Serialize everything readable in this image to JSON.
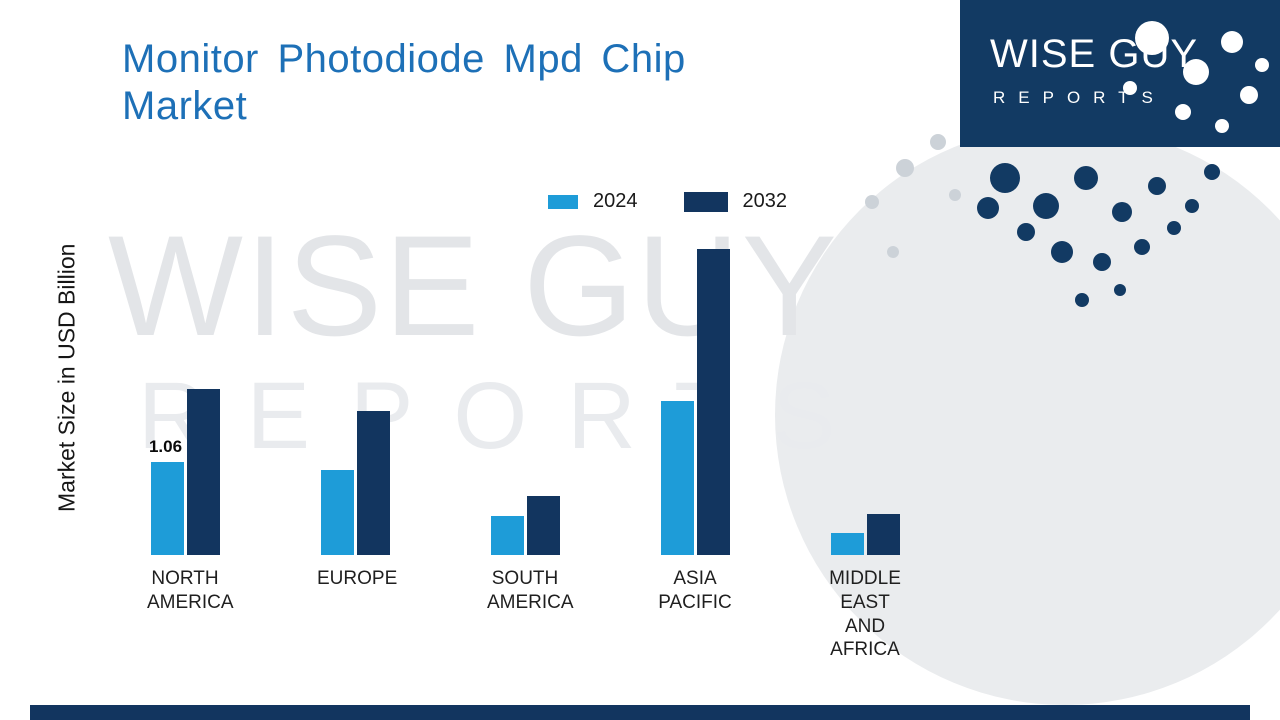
{
  "page": {
    "title": "Monitor Photodiode Mpd Chip Market"
  },
  "logo": {
    "brand": "WISE GUY",
    "subtitle": "REPORTS"
  },
  "watermark": {
    "line1": "WISE GUY",
    "line2": "REPORTS"
  },
  "colors": {
    "title_blue": "#1d70b7",
    "bar_2024": "#1e9cd8",
    "bar_2032": "#12355f",
    "logo_navy": "#123a63",
    "watermark_gray": "#eaecee"
  },
  "chart_data": {
    "type": "bar",
    "title": "Monitor Photodiode Mpd Chip Market",
    "ylabel": "Market Size in USD Billion",
    "xlabel": "",
    "categories": [
      "NORTH AMERICA",
      "EUROPE",
      "SOUTH AMERICA",
      "ASIA PACIFIC",
      "MIDDLE EAST AND AFRICA"
    ],
    "series": [
      {
        "name": "2024",
        "color": "#1e9cd8",
        "values": [
          1.06,
          0.97,
          0.45,
          1.76,
          0.25
        ]
      },
      {
        "name": "2032",
        "color": "#12355f",
        "values": [
          1.9,
          1.64,
          0.67,
          3.5,
          0.47
        ]
      }
    ],
    "ylim": [
      0,
      3.6
    ],
    "grid": false,
    "legend_position": "top-center",
    "annotations": [
      {
        "series": "2024",
        "category": "NORTH AMERICA",
        "text": "1.06"
      }
    ]
  }
}
